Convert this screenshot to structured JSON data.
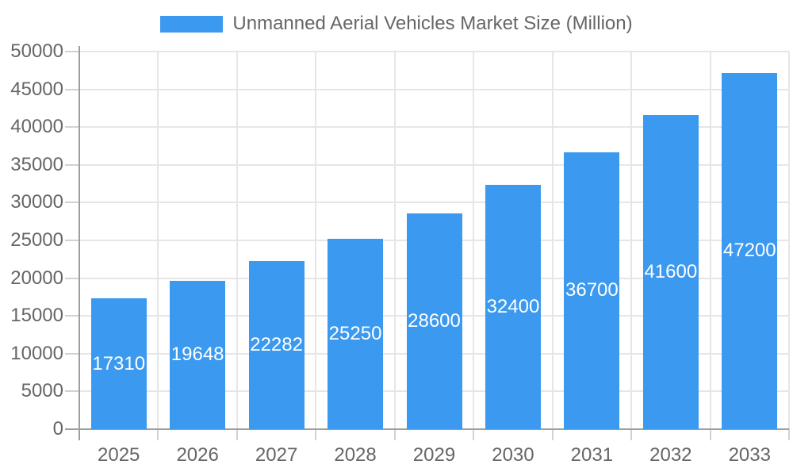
{
  "chart_data": {
    "type": "bar",
    "title": "Unmanned Aerial Vehicles Market Size (Million)",
    "legend_position": "top",
    "categories": [
      "2025",
      "2026",
      "2027",
      "2028",
      "2029",
      "2030",
      "2031",
      "2032",
      "2033"
    ],
    "values": [
      17310,
      19648,
      22282,
      25250,
      28600,
      32400,
      36700,
      41600,
      47200
    ],
    "value_labels": [
      "17310",
      "19648",
      "22282",
      "25250",
      "28600",
      "32400",
      "36700",
      "41600",
      "47200"
    ],
    "xlabel": "",
    "ylabel": "",
    "ylim": [
      0,
      50000
    ],
    "yticks": [
      0,
      5000,
      10000,
      15000,
      20000,
      25000,
      30000,
      35000,
      40000,
      45000,
      50000
    ],
    "ytick_labels": [
      "0",
      "5000",
      "10000",
      "15000",
      "20000",
      "25000",
      "30000",
      "35000",
      "40000",
      "45000",
      "50000"
    ],
    "grid": true,
    "colors": {
      "bar": "#3B99F0",
      "value_label": "#ffffff",
      "axis_text": "#666666",
      "legend_text": "#666666",
      "gridline": "#e6e6e6",
      "tick": "#d2d2d2",
      "axis_line": "#9e9e9e"
    }
  }
}
